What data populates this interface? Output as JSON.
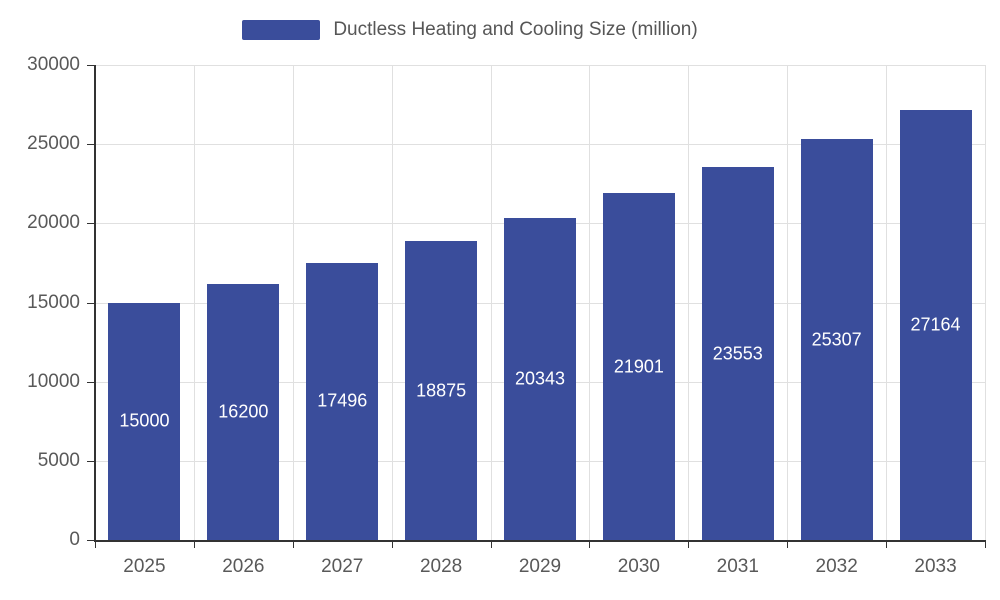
{
  "legend": {
    "label": "Ductless Heating and Cooling Size (million)"
  },
  "chart_data": {
    "type": "bar",
    "title": "Ductless Heating and Cooling Size (million)",
    "categories": [
      "2025",
      "2026",
      "2027",
      "2028",
      "2029",
      "2030",
      "2031",
      "2032",
      "2033"
    ],
    "values": [
      15000,
      16200,
      17496,
      18875,
      20343,
      21901,
      23553,
      25307,
      27164
    ],
    "xlabel": "",
    "ylabel": "",
    "ylim": [
      0,
      30000
    ],
    "ytick_step": 5000,
    "grid": true,
    "legend_position": "top",
    "bar_color": "#3A4D9B",
    "value_label_color": "#FFFFFF",
    "axis_line_color": "#333333",
    "gridline_color": "#E0E0E0",
    "tick_label_color": "#595959"
  }
}
